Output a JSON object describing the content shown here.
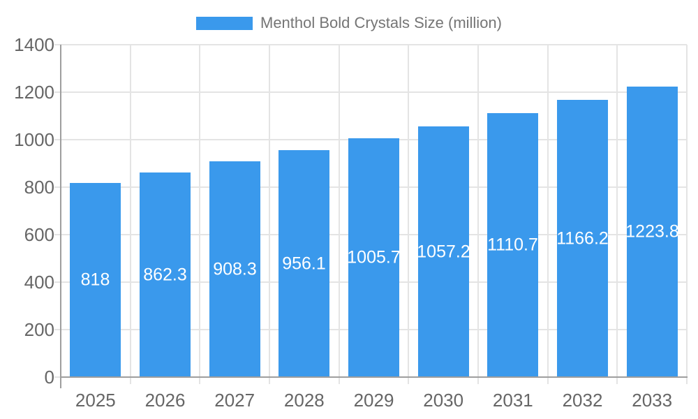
{
  "legend": {
    "label": "Menthol Bold Crystals Size (million)"
  },
  "chart_data": {
    "type": "bar",
    "title": "Menthol Bold Crystals Size (million)",
    "categories": [
      "2025",
      "2026",
      "2027",
      "2028",
      "2029",
      "2030",
      "2031",
      "2032",
      "2033"
    ],
    "values": [
      818,
      862.3,
      908.3,
      956.1,
      1005.7,
      1057.2,
      1110.7,
      1166.2,
      1223.8
    ],
    "series_name": "Menthol Bold Crystals Size (million)",
    "xlabel": "",
    "ylabel": "",
    "ylim": [
      0,
      1400
    ],
    "ytick_step": 200,
    "ytick_labels": [
      "0",
      "200",
      "400",
      "600",
      "800",
      "1000",
      "1200",
      "1400"
    ],
    "grid": true,
    "legend_position": "top",
    "value_labels_inside_bars": true,
    "colors": {
      "bar": "#3A99EC",
      "grid": "#E4E4E4",
      "axis": "#9E9E9E",
      "tick_text": "#666666",
      "value_text": "#FFFFFF",
      "legend_text": "#757575",
      "background": "#FFFFFF"
    }
  }
}
